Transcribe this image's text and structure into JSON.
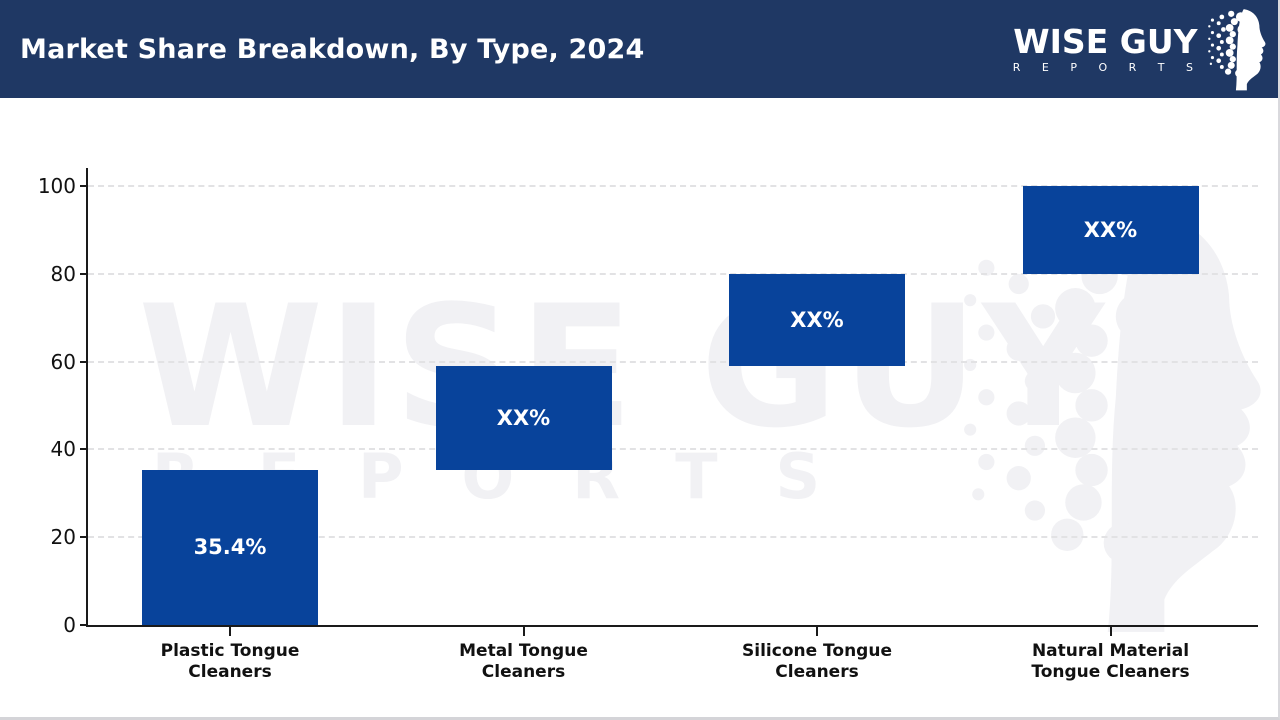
{
  "header": {
    "title": "Market Share Breakdown, By Type, 2024",
    "bg_color": "#1f3864",
    "logo": {
      "line1": "WISE GUY",
      "line2": "R E P O R T S"
    }
  },
  "watermark": {
    "line1": "WISE GUY",
    "line2": "REPORTS"
  },
  "chart_data": {
    "type": "bar",
    "subtype": "waterfall-stepped-segments",
    "title": "Market Share Breakdown, By Type, 2024",
    "categories": [
      "Plastic Tongue Cleaners",
      "Metal Tongue Cleaners",
      "Silicone Tongue Cleaners",
      "Natural Material Tongue Cleaners"
    ],
    "categories_display": [
      [
        "Plastic Tongue",
        "Cleaners"
      ],
      [
        "Metal Tongue",
        "Cleaners"
      ],
      [
        "Silicone Tongue",
        "Cleaners"
      ],
      [
        "Natural Material",
        "Tongue Cleaners"
      ]
    ],
    "segments": [
      {
        "start": 0,
        "end": 35.4,
        "label": "35.4%"
      },
      {
        "start": 35.4,
        "end": 59,
        "label": "XX%"
      },
      {
        "start": 59,
        "end": 80,
        "label": "XX%"
      },
      {
        "start": 80,
        "end": 100,
        "label": "XX%"
      }
    ],
    "yticks": [
      0,
      20,
      40,
      60,
      80,
      100
    ],
    "ylim": [
      0,
      100
    ],
    "xlabel": "",
    "ylabel": "",
    "grid": "horizontal-dashed",
    "legend": "none",
    "bar_color": "#08439b",
    "bar_label_color": "#ffffff",
    "axis_color": "#1a1a1a"
  }
}
